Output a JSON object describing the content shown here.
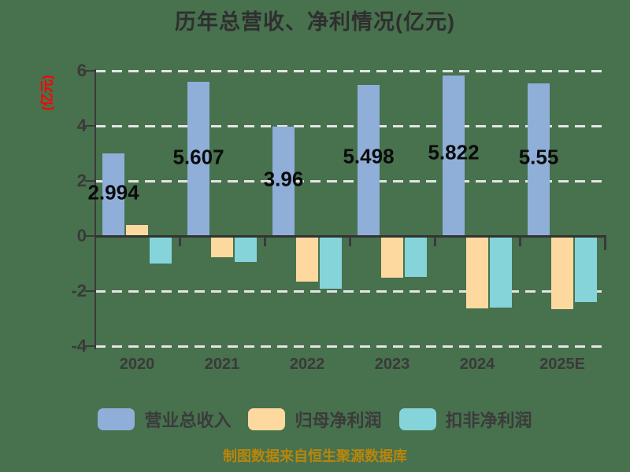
{
  "chart_data": {
    "type": "bar",
    "title": "历年总营收、净利情况(亿元)",
    "ylabel": "(亿元)",
    "categories": [
      "2020",
      "2021",
      "2022",
      "2023",
      "2024",
      "2025E"
    ],
    "series": [
      {
        "name": "营业总收入",
        "color": "#8FAFD9",
        "values": [
          2.994,
          5.607,
          3.96,
          5.498,
          5.822,
          5.55
        ],
        "labels": [
          "2.994",
          "5.607",
          "3.96",
          "5.498",
          "5.822",
          "5.55"
        ]
      },
      {
        "name": "归母净利润",
        "color": "#FDD9A0",
        "values": [
          0.4,
          -0.76,
          -1.67,
          -1.52,
          -2.62,
          -2.66
        ]
      },
      {
        "name": "扣非净利润",
        "color": "#84D4DA",
        "values": [
          -1.0,
          -0.95,
          -1.9,
          -1.48,
          -2.6,
          -2.41
        ]
      }
    ],
    "ylim": [
      -4,
      6
    ],
    "yticks": [
      6,
      4,
      2,
      0,
      -2,
      -4
    ],
    "grid": "dashed",
    "legend_position": "bottom",
    "source_note": "制图数据来自恒生聚源数据库"
  },
  "colors": {
    "background": "#48714E",
    "title_text": "#2F2F2F",
    "axis": "#3A3A3A",
    "zero_line": "#333333",
    "gridline": "#E4E4E4",
    "tick_text": "#3A3A3A",
    "bar_label_text": "#0B0B0B",
    "ylabel_red": "#FF0000",
    "legend_text": "#3B3B3B",
    "source_note": "#B8860B"
  }
}
